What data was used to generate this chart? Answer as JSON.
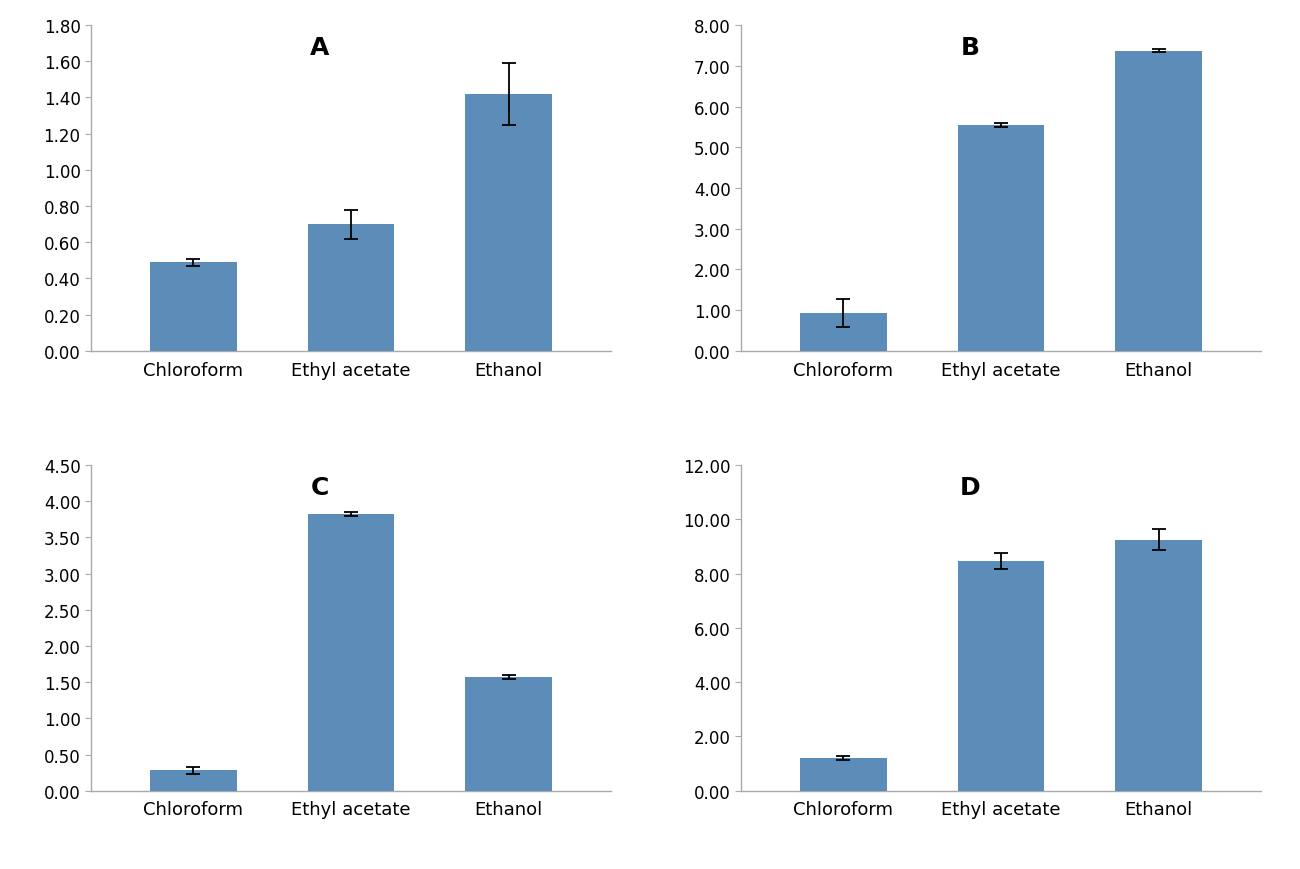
{
  "subplots": [
    {
      "label": "A",
      "categories": [
        "Chloroform",
        "Ethyl acetate",
        "Ethanol"
      ],
      "values": [
        0.49,
        0.7,
        1.42
      ],
      "errors": [
        0.02,
        0.08,
        0.17
      ],
      "ylim": [
        0.0,
        1.8
      ],
      "yticks": [
        0.0,
        0.2,
        0.4,
        0.6,
        0.8,
        1.0,
        1.2,
        1.4,
        1.6,
        1.8
      ]
    },
    {
      "label": "B",
      "categories": [
        "Chloroform",
        "Ethyl acetate",
        "Ethanol"
      ],
      "values": [
        0.93,
        5.55,
        7.37
      ],
      "errors": [
        0.35,
        0.04,
        0.04
      ],
      "ylim": [
        0.0,
        8.0
      ],
      "yticks": [
        0.0,
        1.0,
        2.0,
        3.0,
        4.0,
        5.0,
        6.0,
        7.0,
        8.0
      ]
    },
    {
      "label": "C",
      "categories": [
        "Chloroform",
        "Ethyl acetate",
        "Ethanol"
      ],
      "values": [
        0.28,
        3.82,
        1.57
      ],
      "errors": [
        0.05,
        0.03,
        0.03
      ],
      "ylim": [
        0.0,
        4.5
      ],
      "yticks": [
        0.0,
        0.5,
        1.0,
        1.5,
        2.0,
        2.5,
        3.0,
        3.5,
        4.0,
        4.5
      ]
    },
    {
      "label": "D",
      "categories": [
        "Chloroform",
        "Ethyl acetate",
        "Ethanol"
      ],
      "values": [
        1.2,
        8.45,
        9.25
      ],
      "errors": [
        0.08,
        0.3,
        0.4
      ],
      "ylim": [
        0.0,
        12.0
      ],
      "yticks": [
        0.0,
        2.0,
        4.0,
        6.0,
        8.0,
        10.0,
        12.0
      ]
    }
  ],
  "bar_color": "#5b8db8",
  "bar_width": 0.55,
  "background_color": "#ffffff",
  "label_fontsize": 18,
  "tick_fontsize": 12,
  "category_fontsize": 13,
  "label_fontweight": "bold",
  "spine_color": "#aaaaaa"
}
